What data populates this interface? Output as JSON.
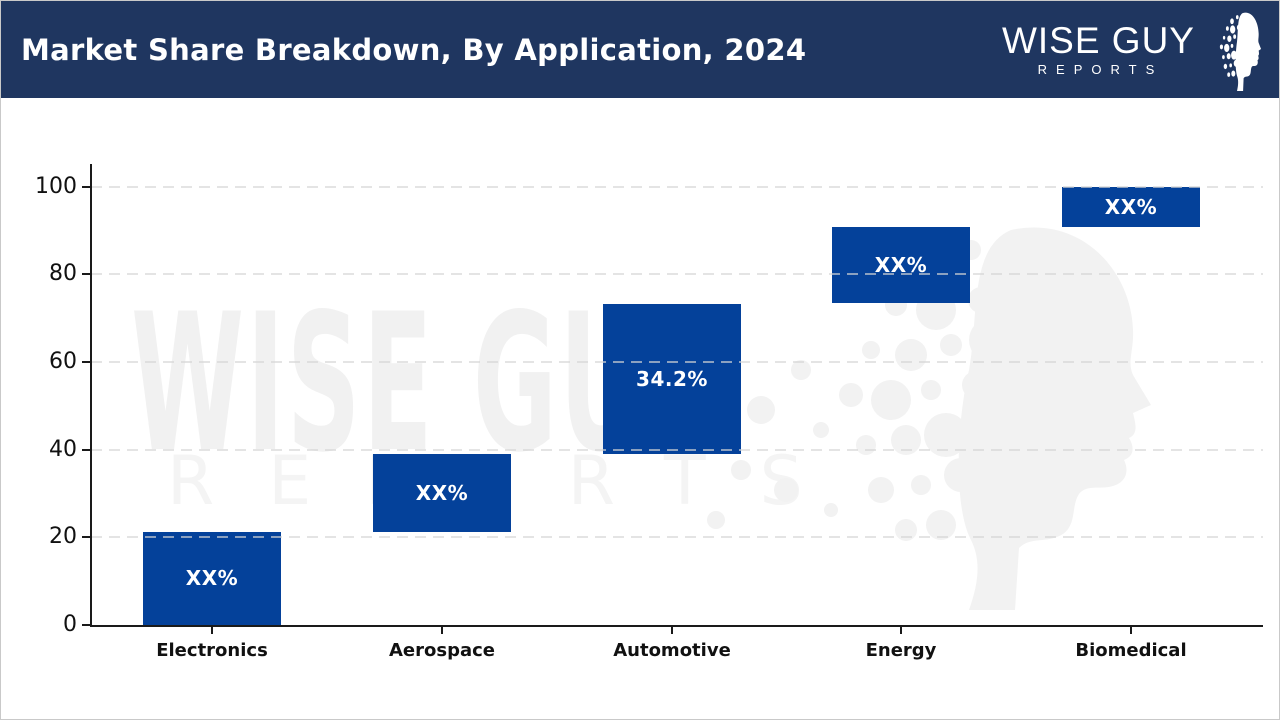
{
  "header": {
    "title": "Market Share Breakdown, By Application, 2024",
    "logo": {
      "main": "WISE GUY",
      "sub": "REPORTS",
      "head_icon": "dotted-head-profile"
    }
  },
  "watermark": {
    "line1": "WISE GUY",
    "line2": "REPORTS",
    "head_icon": "dotted-head-profile"
  },
  "colors": {
    "header_bg": "#1f3660",
    "bar": "#04419a",
    "bar_label_text": "#ffffff",
    "axis": "#1a1a1a",
    "gridline": "#dddddd",
    "watermark": "#f2f2f2",
    "frame_border": "#c9c9c9"
  },
  "chart_data": {
    "type": "bar",
    "subtype": "waterfall-floating-bars",
    "title": "Market Share Breakdown, By Application, 2024",
    "categories": [
      "Electronics",
      "Aerospace",
      "Automotive",
      "Energy",
      "Biomedical"
    ],
    "segments": [
      {
        "category": "Electronics",
        "start": 0,
        "end": 21.3,
        "label": "XX%"
      },
      {
        "category": "Aerospace",
        "start": 21.3,
        "end": 39.0,
        "label": "XX%"
      },
      {
        "category": "Automotive",
        "start": 39.0,
        "end": 73.2,
        "label": "34.2%"
      },
      {
        "category": "Energy",
        "start": 73.4,
        "end": 90.8,
        "label": "XX%"
      },
      {
        "category": "Biomedical",
        "start": 90.8,
        "end": 100,
        "label": "XX%"
      }
    ],
    "yticks": [
      0,
      20,
      40,
      60,
      80,
      100
    ],
    "ylim": [
      0,
      105
    ],
    "xlabel": "",
    "ylabel": "",
    "grid": "horizontal-dashed",
    "legend": "none",
    "bar_color": "#04419a"
  }
}
